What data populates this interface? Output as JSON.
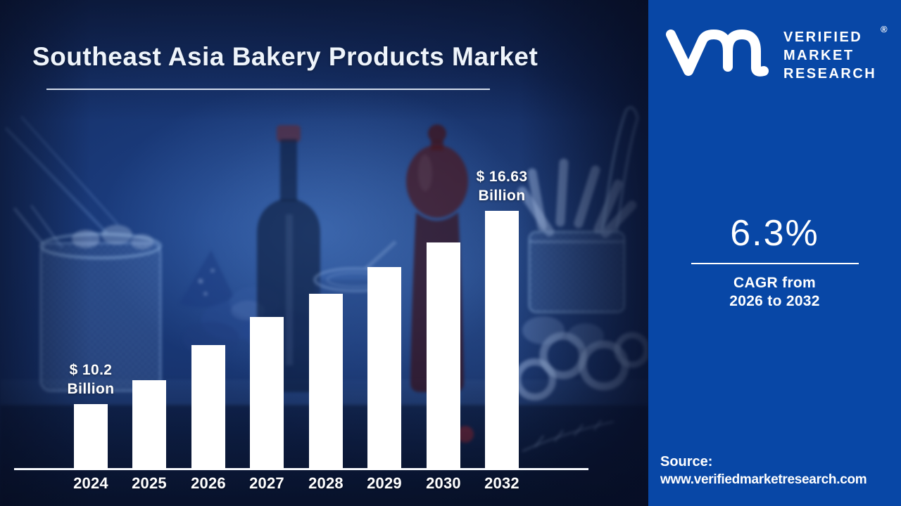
{
  "colors": {
    "panel_blue": "#0847A6",
    "background_navy": "#0E2150",
    "bar_fill": "#FFFFFF",
    "text_white": "#FFFFFF",
    "grinder_maroon": "#4A1B22"
  },
  "header": {
    "title": "Southeast Asia Bakery Products Market"
  },
  "brand": {
    "name_line1": "VERIFIED",
    "name_line2": "MARKET",
    "name_line3": "RESEARCH",
    "registered_mark": "®"
  },
  "chart_data": {
    "type": "bar",
    "categories": [
      "2024",
      "2025",
      "2026",
      "2027",
      "2028",
      "2029",
      "2030",
      "2032"
    ],
    "unit": "USD Billion",
    "values": [
      10.2,
      10.84,
      11.53,
      12.25,
      13.03,
      13.85,
      14.72,
      16.63
    ],
    "values_note": "2024 and 2032 values labeled on chart; intermediate values estimated from 6.3% CAGR",
    "bar_heights_pct_of_max": [
      25.3,
      34.5,
      48.1,
      59.0,
      67.9,
      78.3,
      87.8,
      100
    ],
    "annotations": [
      {
        "index": 0,
        "lines": [
          "$ 10.2",
          "Billion"
        ]
      },
      {
        "index": 7,
        "lines": [
          "$ 16.63",
          "Billion"
        ]
      }
    ],
    "bar_color": "#FFFFFF",
    "baseline": true,
    "gridlines": false,
    "y_axis_shown": false,
    "legend": "none"
  },
  "stats": {
    "cagr_value": "6.3%",
    "cagr_caption_line1": "CAGR from",
    "cagr_caption_line2": "2026 to 2032"
  },
  "source": {
    "label": "Source:",
    "url": "www.verifiedmarketresearch.com"
  }
}
